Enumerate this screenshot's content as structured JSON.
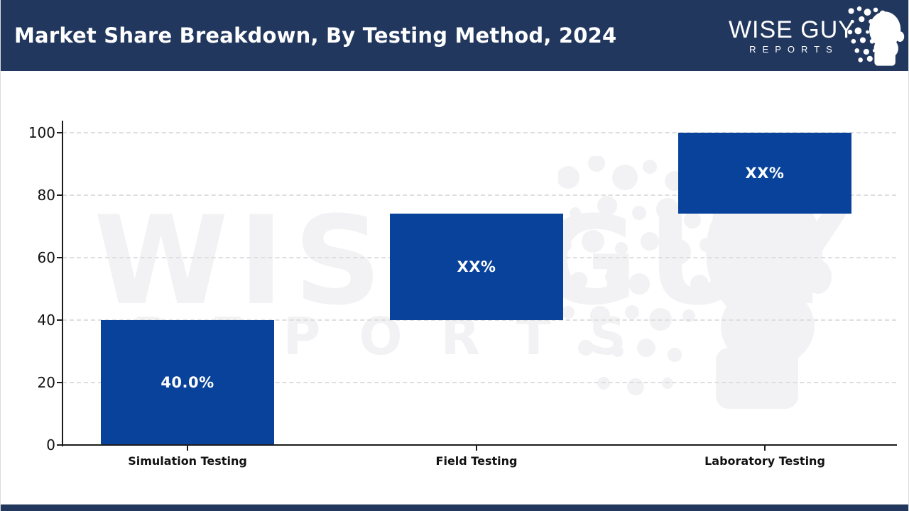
{
  "header": {
    "title": "Market Share Breakdown, By Testing Method, 2024",
    "logo": {
      "line1": "WISE GUY",
      "line2": "REPORTS"
    }
  },
  "watermark": {
    "line1": "WISE GUY",
    "line2": "REPORTS"
  },
  "footer": {
    "note": ""
  },
  "chart_data": {
    "type": "bar",
    "subtype": "waterfall",
    "title": "Market Share Breakdown, By Testing Method, 2024",
    "categories": [
      "Simulation Testing",
      "Field Testing",
      "Laboratory Testing"
    ],
    "segments": [
      {
        "category": "Simulation Testing",
        "from": 0,
        "to": 40,
        "label": "40.0%"
      },
      {
        "category": "Field Testing",
        "from": 40,
        "to": 74,
        "label": "XX%"
      },
      {
        "category": "Laboratory Testing",
        "from": 74,
        "to": 100,
        "label": "XX%"
      }
    ],
    "values_shown": [
      "40.0%",
      "XX%",
      "XX%"
    ],
    "yticks": [
      0,
      20,
      40,
      60,
      80,
      100
    ],
    "ylim": [
      0,
      100
    ],
    "xlabel": "",
    "ylabel": "",
    "grid": "horizontal-dashed",
    "legend": "none"
  },
  "colors": {
    "header_bg": "#21375e",
    "footer_bg": "#21375e",
    "bar": "#08429b",
    "bar_label": "#ffffff",
    "axis": "#1c1c1c",
    "grid": "#dedede",
    "watermark": "#f2f2f4",
    "title_text": "#ffffff",
    "tick_text": "#111111"
  }
}
